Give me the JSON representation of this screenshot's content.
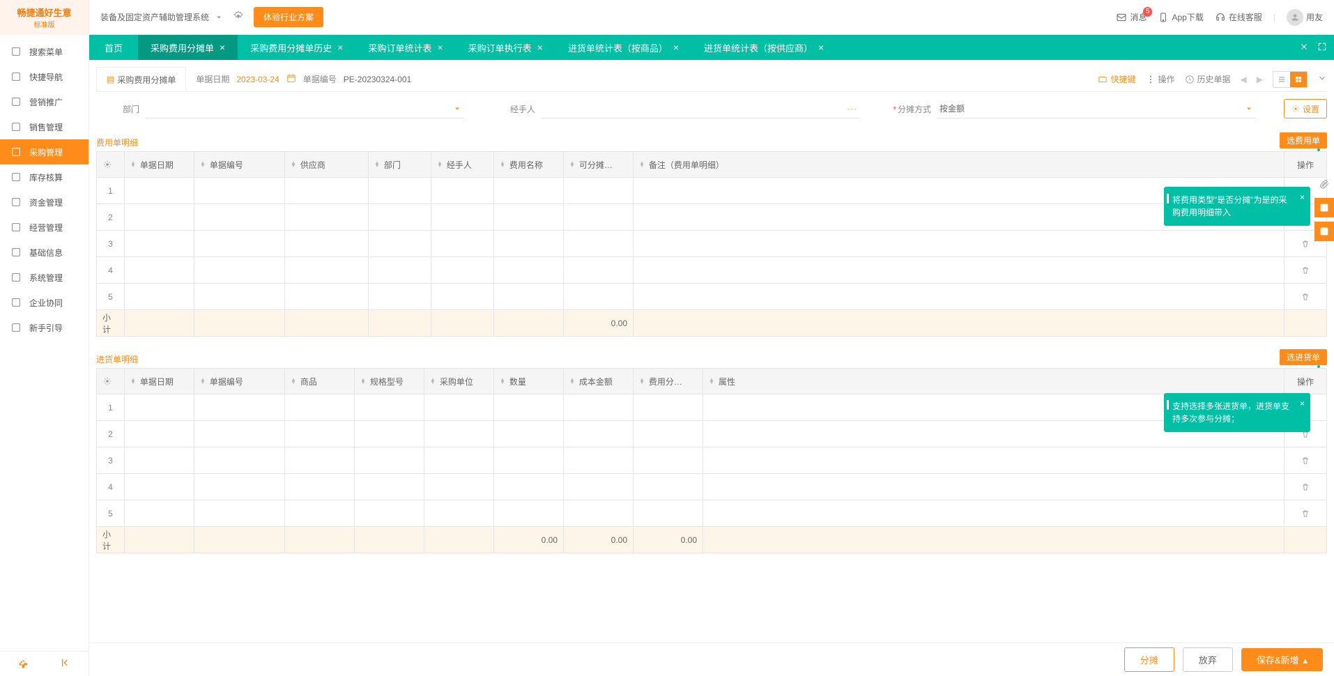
{
  "brand": {
    "name": "畅捷通好生意",
    "edition": "标准版"
  },
  "topbar": {
    "system_name": "装备及固定资产辅助管理系统",
    "industry_btn": "体验行业方案",
    "msg_label": "消息",
    "msg_count": "5",
    "app_label": "App下载",
    "cs_label": "在线客服",
    "user_label": "用友"
  },
  "nav": {
    "items": [
      "搜索菜单",
      "快捷导航",
      "营销推广",
      "销售管理",
      "采购管理",
      "库存核算",
      "资金管理",
      "经营管理",
      "基础信息",
      "系统管理",
      "企业协同",
      "新手引导"
    ],
    "active_index": 4
  },
  "tabs": {
    "items": [
      {
        "label": "首页",
        "closable": false
      },
      {
        "label": "采购费用分摊单",
        "closable": true,
        "active": true
      },
      {
        "label": "采购费用分摊单历史",
        "closable": true
      },
      {
        "label": "采购订单统计表",
        "closable": true
      },
      {
        "label": "采购订单执行表",
        "closable": true
      },
      {
        "label": "进货单统计表（按商品）",
        "closable": true
      },
      {
        "label": "进货单统计表（按供应商）",
        "closable": true
      }
    ]
  },
  "doc": {
    "title": "采购费用分摊单",
    "date_label": "单据日期",
    "date_value": "2023-03-24",
    "num_label": "单据编号",
    "num_value": "PE-20230324-001",
    "tools": {
      "shortcut": "快捷键",
      "operate": "操作",
      "history": "历史单据"
    }
  },
  "form": {
    "dept_label": "部门",
    "dept_value": "",
    "handler_label": "经手人",
    "handler_value": "",
    "method_label": "分摊方式",
    "method_value": "按金额",
    "settings_btn": "设置"
  },
  "section1": {
    "title": "费用单明细",
    "select_btn": "选费用单",
    "columns": [
      "",
      "单据日期",
      "单据编号",
      "供应商",
      "部门",
      "经手人",
      "费用名称",
      "可分摊…",
      "备注（费用单明细）",
      "操作"
    ],
    "rows": 5,
    "subtotal_label": "小计",
    "subtotal_amount": "0.00"
  },
  "section2": {
    "title": "进货单明细",
    "select_btn": "选进货单",
    "columns": [
      "",
      "单据日期",
      "单据编号",
      "商品",
      "规格型号",
      "采购单位",
      "数量",
      "成本金额",
      "费用分…",
      "属性",
      "操作"
    ],
    "rows": 5,
    "subtotal_label": "小计",
    "subtotal_qty": "0.00",
    "subtotal_cost": "0.00",
    "subtotal_fee": "0.00"
  },
  "tips": {
    "tip1": "将费用类型\"是否分摊\"为是的采购费用明细带入",
    "tip2": "支持选择多张进货单，进货单支持多次参与分摊；"
  },
  "footer": {
    "allocate": "分摊",
    "discard": "放弃",
    "save_add": "保存&新增"
  },
  "colors": {
    "primary": "#ff8c1a",
    "teal": "#00bfa5"
  }
}
